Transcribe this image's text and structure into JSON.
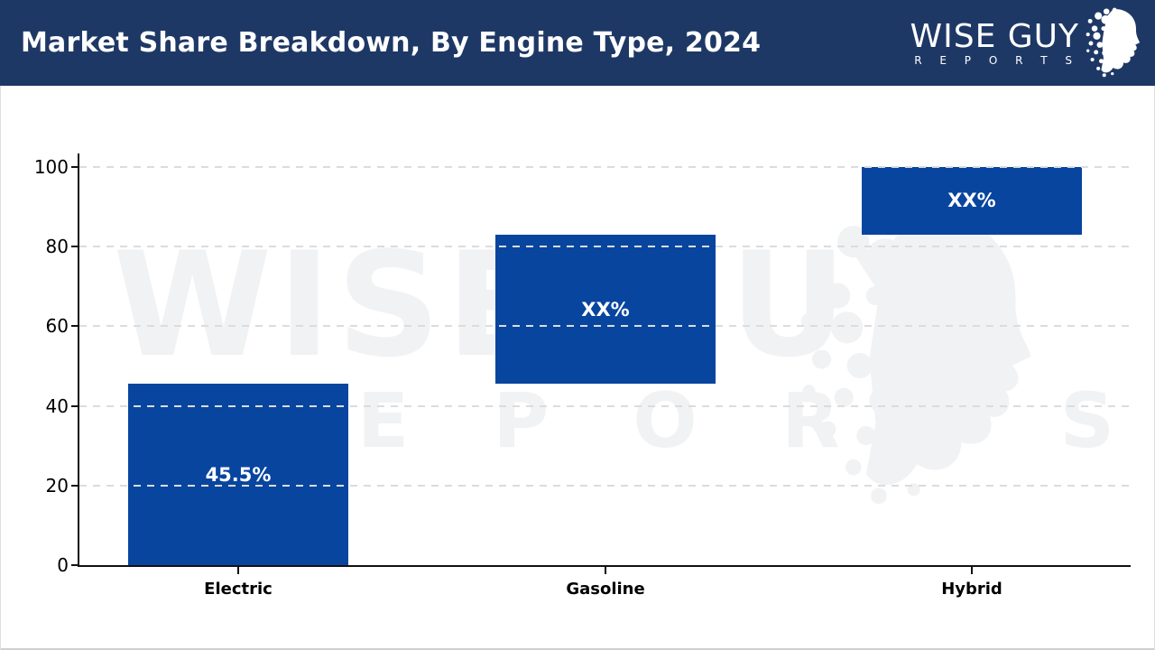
{
  "header": {
    "title": "Market Share Breakdown, By Engine Type, 2024",
    "background_color": "#1e3866",
    "title_color": "#ffffff",
    "logo": {
      "line1": "WISE GUY",
      "line2": "R E P O R T S",
      "icon": "dotted-head-profile"
    }
  },
  "watermark": {
    "line1": "WISE GUY",
    "line2": "R E P O R T S",
    "icon": "dotted-head-profile",
    "color": "#f1f2f4"
  },
  "chart_data": {
    "type": "bar",
    "variant": "waterfall",
    "title": "Market Share Breakdown, By Engine Type, 2024",
    "categories": [
      "Electric",
      "Gasoline",
      "Hybrid"
    ],
    "segments": [
      {
        "category": "Electric",
        "start": 0,
        "end": 45.5,
        "label": "45.5%"
      },
      {
        "category": "Gasoline",
        "start": 45.5,
        "end": 83,
        "label": "XX%"
      },
      {
        "category": "Hybrid",
        "start": 83,
        "end": 100,
        "label": "XX%"
      }
    ],
    "xlabel": "",
    "ylabel": "",
    "ylim": [
      0,
      100
    ],
    "yticks": [
      0,
      20,
      40,
      60,
      80,
      100
    ],
    "grid": {
      "horizontal": true,
      "style": "dashed",
      "color": "#dcdcdc",
      "drawn_above_bars": true
    },
    "legend": "none",
    "colors": {
      "bar": "#08459f",
      "bar_label": "#ffffff",
      "axis": "#111111",
      "tick_label": "#000000"
    }
  },
  "page": {
    "background": "#ffffff",
    "edge_border_color": "#d8d8d8"
  }
}
